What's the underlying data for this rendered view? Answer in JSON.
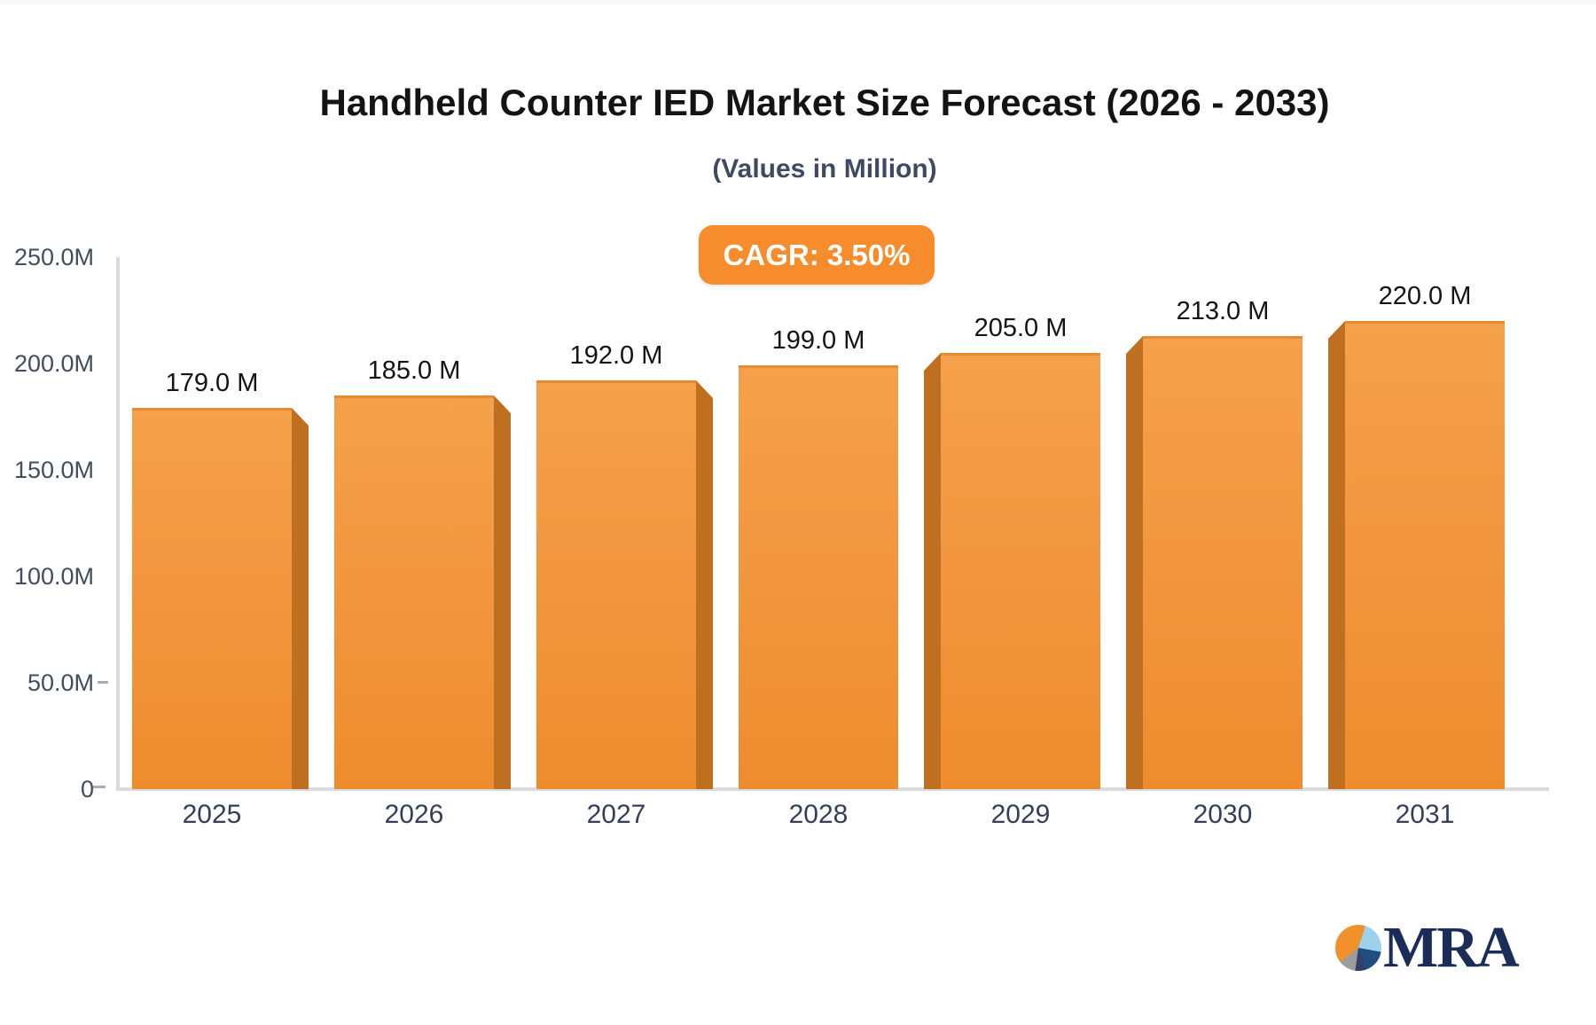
{
  "page": {
    "background": "#ffffff",
    "top_strip_color": "#F7F8FB"
  },
  "header": {
    "title": "Handheld Counter IED Market Size Forecast (2026 - 2033)",
    "subtitle": "(Values in Million)",
    "cagr_badge_label": "CAGR: 3.50%",
    "cagr_badge_color": "#F68C2B"
  },
  "chart_data": {
    "type": "bar",
    "title": "Handheld Counter IED Market Size Forecast (2026 - 2033)",
    "subtitle": "(Values in Million)",
    "unit": "Million",
    "cagr_percent": "3.50%",
    "categories": [
      "2025",
      "2026",
      "2027",
      "2028",
      "2029",
      "2030",
      "2031"
    ],
    "values": [
      179.0,
      185.0,
      192.0,
      199.0,
      205.0,
      213.0,
      220.0
    ],
    "value_labels": [
      "179.0 M",
      "185.0 M",
      "192.0 M",
      "199.0 M",
      "205.0 M",
      "213.0 M",
      "220.0 M"
    ],
    "ytick_labels": [
      "250.0M",
      "200.0M",
      "150.0M",
      "100.0M",
      "50.0M",
      "0"
    ],
    "ytick_values": [
      250,
      200,
      150,
      100,
      50,
      0
    ],
    "ylim": [
      0,
      250
    ],
    "grid": false,
    "legend_position": "none",
    "style": "3d-extruded-bars",
    "bar_color_top": "#F5A04A",
    "bar_color_bottom": "#EE8C2D",
    "bar_side_color": "#BE6F1F",
    "axis_line_color": "#D9DBE1"
  },
  "logo": {
    "text": "MRA",
    "navy": "#1C2C58",
    "orange": "#F0912C",
    "lightblue": "#9ED1EC",
    "gray": "#9C9C9C"
  }
}
